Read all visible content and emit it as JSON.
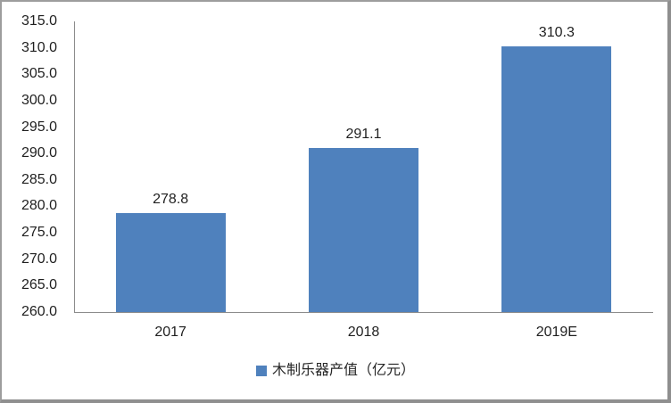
{
  "chart_data": {
    "type": "bar",
    "categories": [
      "2017",
      "2018",
      "2019E"
    ],
    "values": [
      278.8,
      291.1,
      310.3
    ],
    "data_labels": [
      "278.8",
      "291.1",
      "310.3"
    ],
    "series_name": "木制乐器产值（亿元）",
    "title": "",
    "xlabel": "",
    "ylabel": "",
    "ylim": [
      260.0,
      315.0
    ],
    "ytick_step": 5.0,
    "ytick_decimals": 1,
    "grid": false,
    "legend_position": "bottom",
    "bar_color": "#4f81bd",
    "axis_color": "#8c8c8c",
    "text_color": "#1f1f1f"
  },
  "legend": {
    "label": "木制乐器产值（亿元）"
  }
}
